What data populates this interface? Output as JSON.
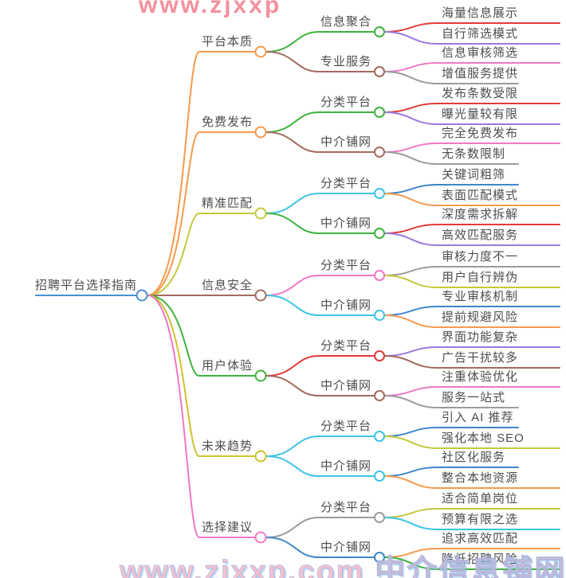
{
  "root": {
    "label": "招聘平台选择指南",
    "color": "#4A8FD3"
  },
  "watermarks": {
    "top": "www.zjxxp",
    "bottom": "www.zjxxp.com 中介信息铺网"
  },
  "branches": [
    {
      "label": "平台本质",
      "color": "#F79A4D",
      "children": [
        {
          "label": "信息聚合",
          "color": "#3FB33F",
          "leaves": [
            {
              "label": "海量信息展示",
              "color": "#E23B3B"
            },
            {
              "label": "自行筛选模式",
              "color": "#9B7ADF"
            }
          ]
        },
        {
          "label": "专业服务",
          "color": "#A26B60",
          "leaves": [
            {
              "label": "信息审核筛选",
              "color": "#F277C4"
            },
            {
              "label": "增值服务提供",
              "color": "#9B9B9B"
            }
          ]
        }
      ]
    },
    {
      "label": "免费发布",
      "color": "#F79A4D",
      "children": [
        {
          "label": "分类平台",
          "color": "#3FB33F",
          "leaves": [
            {
              "label": "发布条数受限",
              "color": "#E23B3B"
            },
            {
              "label": "曝光量较有限",
              "color": "#9B7ADF"
            }
          ]
        },
        {
          "label": "中介铺网",
          "color": "#A26B60",
          "leaves": [
            {
              "label": "完全免费发布",
              "color": "#F277C4"
            },
            {
              "label": "无条数限制",
              "color": "#9B9B9B"
            }
          ]
        }
      ]
    },
    {
      "label": "精准匹配",
      "color": "#C2CA3C",
      "children": [
        {
          "label": "分类平台",
          "color": "#3CC4E4",
          "leaves": [
            {
              "label": "关键词粗筛",
              "color": "#3F86CC"
            },
            {
              "label": "表面匹配模式",
              "color": "#F79A4D"
            }
          ]
        },
        {
          "label": "中介铺网",
          "color": "#3FB33F",
          "leaves": [
            {
              "label": "深度需求拆解",
              "color": "#E23B3B"
            },
            {
              "label": "高效匹配服务",
              "color": "#9B7ADF"
            }
          ]
        }
      ]
    },
    {
      "label": "信息安全",
      "color": "#A26B60",
      "children": [
        {
          "label": "分类平台",
          "color": "#F277C4",
          "leaves": [
            {
              "label": "审核力度不一",
              "color": "#9B9B9B"
            },
            {
              "label": "用户自行辨伪",
              "color": "#C2CA3C"
            }
          ]
        },
        {
          "label": "中介铺网",
          "color": "#3CC4E4",
          "leaves": [
            {
              "label": "专业审核机制",
              "color": "#3F86CC"
            },
            {
              "label": "提前规避风险",
              "color": "#F79A4D"
            }
          ]
        }
      ]
    },
    {
      "label": "用户体验",
      "color": "#3FB33F",
      "children": [
        {
          "label": "分类平台",
          "color": "#E23B3B",
          "leaves": [
            {
              "label": "界面功能复杂",
              "color": "#9B7ADF"
            },
            {
              "label": "广告干扰较多",
              "color": "#A26B60"
            }
          ]
        },
        {
          "label": "中介铺网",
          "color": "#A26B60",
          "leaves": [
            {
              "label": "注重体验优化",
              "color": "#F277C4"
            },
            {
              "label": "服务一站式",
              "color": "#9B9B9B"
            }
          ]
        }
      ]
    },
    {
      "label": "未来趋势",
      "color": "#CCC32E",
      "children": [
        {
          "label": "分类平台",
          "color": "#3CC4E4",
          "leaves": [
            {
              "label": "引入 AI 推荐",
              "color": "#3F86CC"
            },
            {
              "label": "强化本地 SEO",
              "color": "#C2CA3C"
            }
          ]
        },
        {
          "label": "中介铺网",
          "color": "#3CC4E4",
          "leaves": [
            {
              "label": "社区化服务",
              "color": "#3F86CC"
            },
            {
              "label": "整合本地资源",
              "color": "#F79A4D"
            }
          ]
        }
      ]
    },
    {
      "label": "选择建议",
      "color": "#F277C4",
      "children": [
        {
          "label": "分类平台",
          "color": "#9B9B9B",
          "leaves": [
            {
              "label": "适合简单岗位",
              "color": "#C2CA3C"
            },
            {
              "label": "预算有限之选",
              "color": "#3CC4E4"
            }
          ]
        },
        {
          "label": "中介铺网",
          "color": "#3F86CC",
          "leaves": [
            {
              "label": "追求高效匹配",
              "color": "#F79A4D"
            },
            {
              "label": "降低招聘风险",
              "color": "#3FB33F"
            }
          ]
        }
      ]
    }
  ]
}
